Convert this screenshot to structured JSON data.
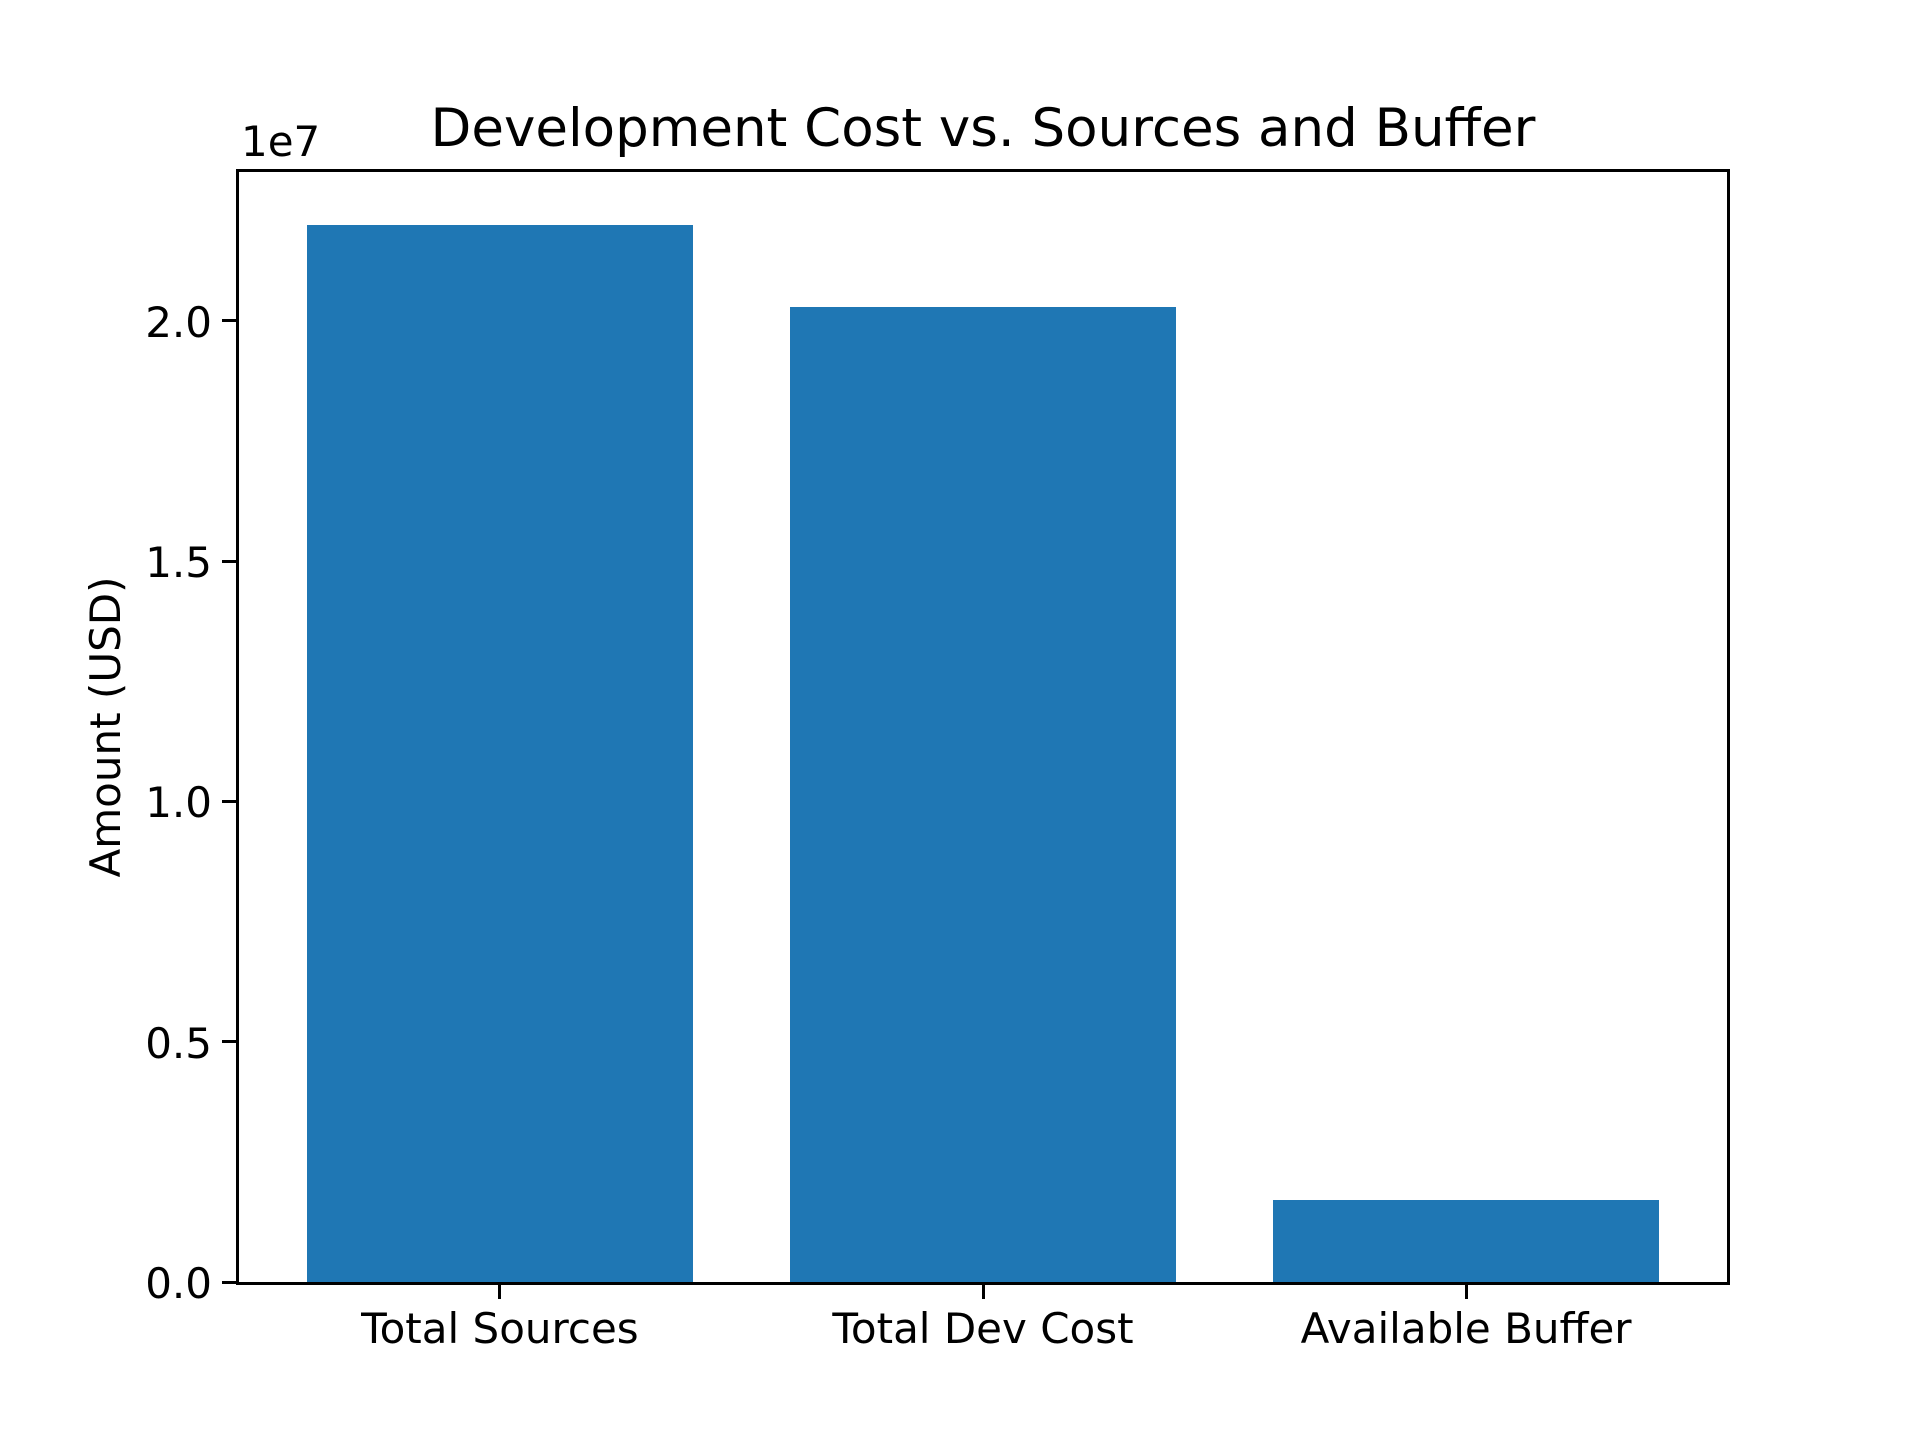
{
  "chart_data": {
    "type": "bar",
    "title": "Development Cost vs. Sources and Buffer",
    "xlabel": "",
    "ylabel": "Amount (USD)",
    "categories": [
      "Total Sources",
      "Total Dev Cost",
      "Available Buffer"
    ],
    "values": [
      22000000,
      20300000,
      1700000
    ],
    "bar_color": "#1f77b4",
    "bar_width": 0.8,
    "xlim": [
      -0.54,
      2.54
    ],
    "ylim": [
      0,
      23100000
    ],
    "yticks": [
      0,
      5000000,
      10000000,
      15000000,
      20000000
    ],
    "ytick_labels": [
      "0.0",
      "0.5",
      "1.0",
      "1.5",
      "2.0"
    ],
    "offset_label": "1e7",
    "grid": false,
    "legend": null,
    "text_color": "#000000",
    "spine_color": "#000000",
    "background_color": "#ffffff"
  }
}
